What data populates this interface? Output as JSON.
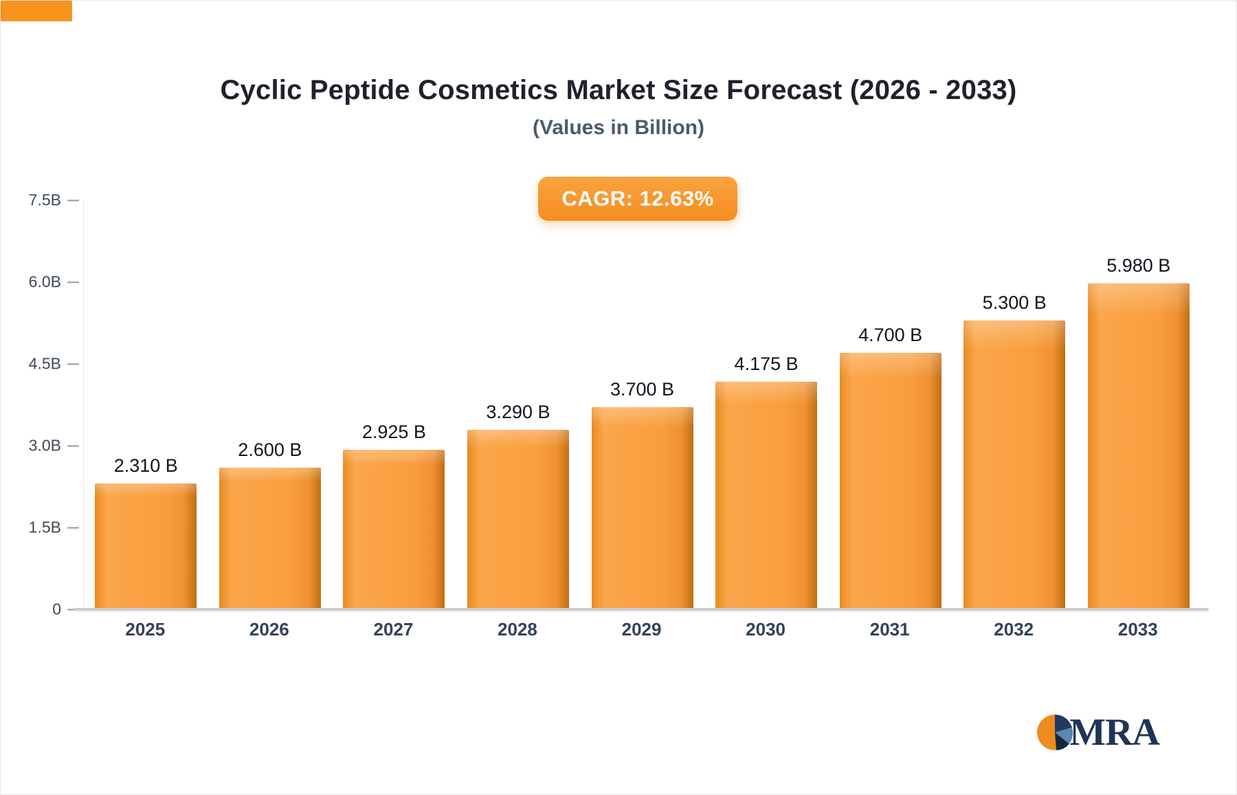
{
  "page": {
    "title": "Cyclic Peptide Cosmetics Market Size Forecast (2026 - 2033)",
    "subtitle": "(Values in Billion)",
    "cagr_label": "CAGR: 12.63%"
  },
  "chart_data": {
    "type": "bar",
    "title": "Cyclic Peptide Cosmetics Market Size Forecast (2026 - 2033)",
    "subtitle": "(Values in Billion)",
    "categories": [
      "2025",
      "2026",
      "2027",
      "2028",
      "2029",
      "2030",
      "2031",
      "2032",
      "2033"
    ],
    "values": [
      2.31,
      2.6,
      2.925,
      3.29,
      3.7,
      4.175,
      4.7,
      5.3,
      5.98
    ],
    "value_labels": [
      "2.310 B",
      "2.600 B",
      "2.925 B",
      "3.290 B",
      "3.700 B",
      "4.175 B",
      "4.700 B",
      "5.300 B",
      "5.980 B"
    ],
    "xlabel": "",
    "ylabel": "",
    "ylim": [
      0,
      7.5
    ],
    "yticks": [
      {
        "value": 7.5,
        "label": "7.5B"
      },
      {
        "value": 6.0,
        "label": "6.0B"
      },
      {
        "value": 4.5,
        "label": "4.5B"
      },
      {
        "value": 3.0,
        "label": "3.0B"
      },
      {
        "value": 1.5,
        "label": "1.5B"
      },
      {
        "value": 0,
        "label": "0"
      }
    ],
    "grid": false,
    "legend": false,
    "annotation": "CAGR: 12.63%"
  },
  "branding": {
    "logo_text": "MRA"
  },
  "colors": {
    "bar_orange": "#F7941E",
    "bar_side_dark": "#BF6E12",
    "badge_orange": "#F68C20",
    "navy": "#1F3456",
    "axis_gray": "#3C4856"
  }
}
